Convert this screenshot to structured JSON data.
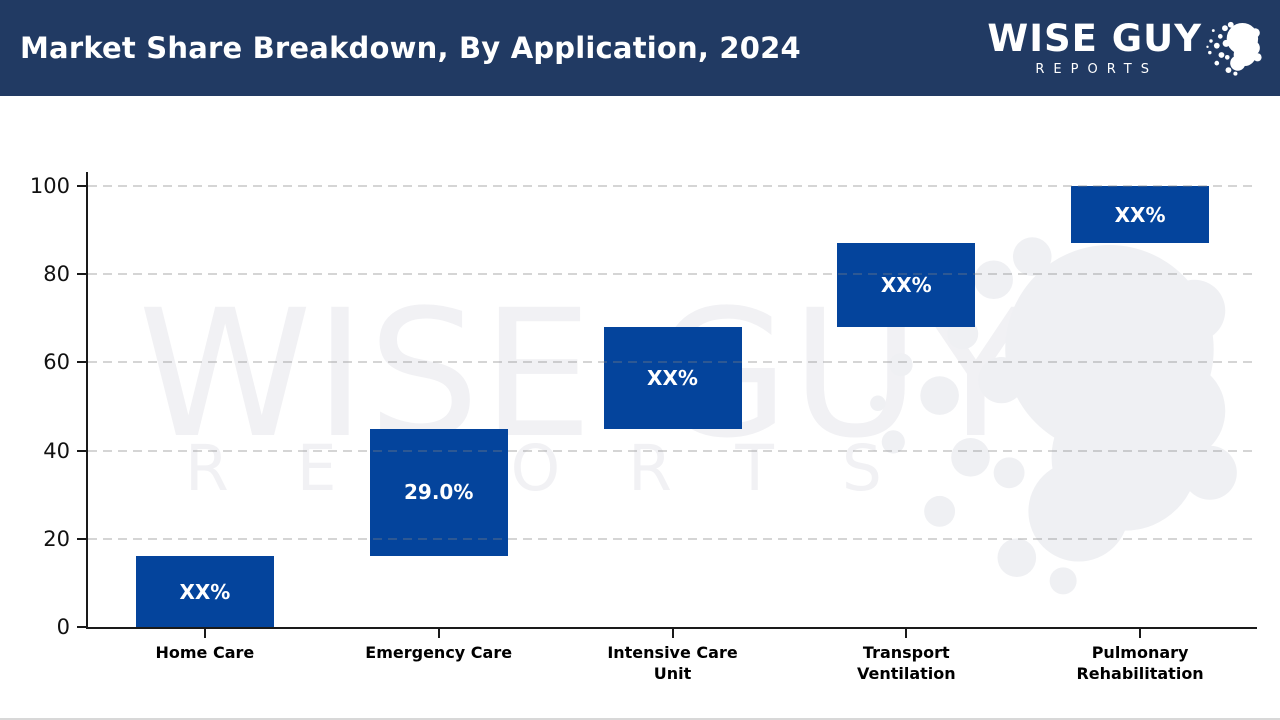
{
  "header": {
    "title": "Market Share Breakdown, By Application, 2024",
    "bg_color": "#213a63",
    "logo": {
      "line1": "WISE GUY",
      "line2": "REPORTS"
    }
  },
  "watermark": {
    "line1": "WISE GUY",
    "line2": "REPORTS"
  },
  "chart_data": {
    "type": "waterfall",
    "title": "Market Share Breakdown, By Application, 2024",
    "categories": [
      "Home Care",
      "Emergency Care",
      "Intensive Care Unit",
      "Transport Ventilation",
      "Pulmonary Rehabilitation"
    ],
    "category_label_lines": [
      [
        "Home Care"
      ],
      [
        "Emergency Care"
      ],
      [
        "Intensive Care",
        "Unit"
      ],
      [
        "Transport",
        "Ventilation"
      ],
      [
        "Pulmonary",
        "Rehabilitation"
      ]
    ],
    "segments": [
      {
        "category": "Home Care",
        "start": 0,
        "end": 16,
        "value": 16,
        "value_label": "XX%"
      },
      {
        "category": "Emergency Care",
        "start": 16,
        "end": 45,
        "value": 29,
        "value_label": "29.0%"
      },
      {
        "category": "Intensive Care Unit",
        "start": 45,
        "end": 68,
        "value": 23,
        "value_label": "XX%"
      },
      {
        "category": "Transport Ventilation",
        "start": 68,
        "end": 87,
        "value": 19,
        "value_label": "XX%"
      },
      {
        "category": "Pulmonary Rehabilitation",
        "start": 87,
        "end": 100,
        "value": 13,
        "value_label": "XX%"
      }
    ],
    "ylim": [
      0,
      100
    ],
    "yticks": [
      0,
      20,
      40,
      60,
      80,
      100
    ],
    "xlabel": "",
    "ylabel": "",
    "grid": "horizontal-dashed",
    "legend": "none",
    "bar_color": "#04449c",
    "bar_label_color": "#ffffff",
    "axis_color": "#1a1a1a"
  }
}
